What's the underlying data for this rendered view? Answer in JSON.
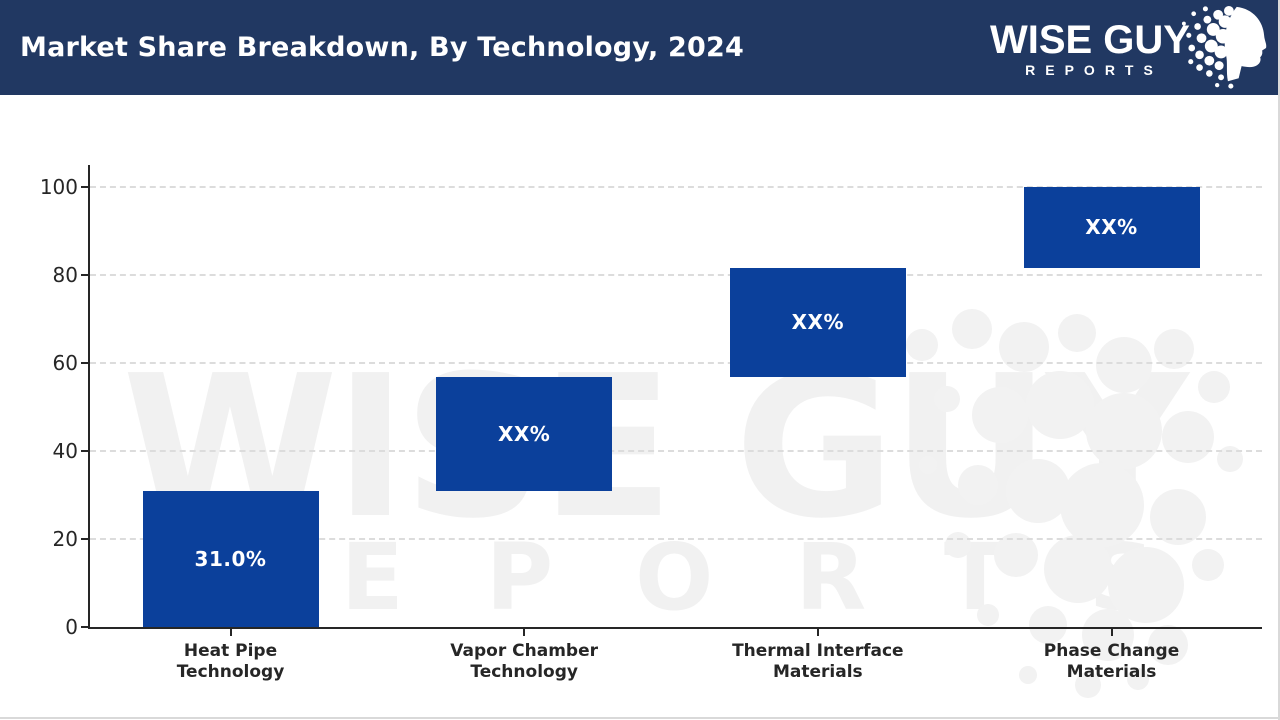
{
  "header": {
    "title": "Market Share Breakdown, By Technology, 2024",
    "logo_wordmark": "WISE GUY",
    "logo_subtext": "REPORTS"
  },
  "watermark": {
    "wordmark": "WISE GUY",
    "subtext": "REPORTS"
  },
  "colors": {
    "header_bg": "#213862",
    "bar": "#0B409B",
    "grid": "#DCDCDC",
    "axis": "#262626",
    "watermark": "#F1F1F1",
    "page_border": "#D9D9D9"
  },
  "chart_data": {
    "type": "bar",
    "variant": "waterfall",
    "title": "Market Share Breakdown, By Technology, 2024",
    "xlabel": "",
    "ylabel": "",
    "ylim": [
      0,
      105
    ],
    "yticks": [
      0,
      20,
      40,
      60,
      80,
      100
    ],
    "grid": "horizontal-dashed",
    "legend": "none",
    "bar_color": "#0B409B",
    "bar_label_color": "#FFFFFF",
    "categories": [
      "Heat Pipe Technology",
      "Vapor Chamber Technology",
      "Thermal Interface Materials",
      "Phase Change Materials"
    ],
    "category_lines": [
      [
        "Heat Pipe",
        "Technology"
      ],
      [
        "Vapor Chamber",
        "Technology"
      ],
      [
        "Thermal Interface",
        "Materials"
      ],
      [
        "Phase Change",
        "Materials"
      ]
    ],
    "segments": [
      {
        "category": "Heat Pipe Technology",
        "start": 0,
        "end": 31.0,
        "label": "31.0%"
      },
      {
        "category": "Vapor Chamber Technology",
        "start": 31.0,
        "end": 56.9,
        "label": "XX%"
      },
      {
        "category": "Thermal Interface Materials",
        "start": 56.9,
        "end": 81.6,
        "label": "XX%"
      },
      {
        "category": "Phase Change Materials",
        "start": 81.6,
        "end": 100.0,
        "label": "XX%"
      }
    ]
  }
}
